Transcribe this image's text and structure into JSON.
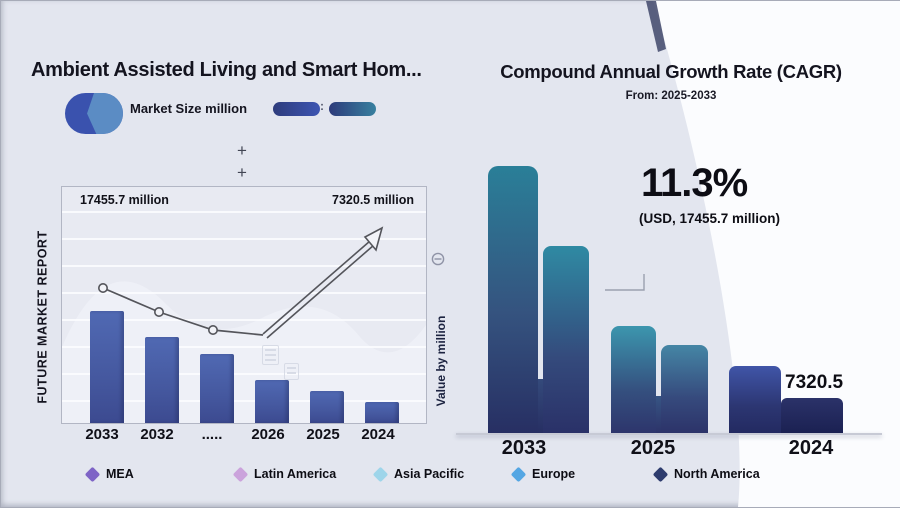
{
  "header": {
    "left_title": "Ambient Assisted Living and Smart Hom...",
    "logo_caption": "Market Size million",
    "ratio_separator": ":",
    "right_title": "Compound Annual Growth Rate (CAGR)",
    "right_subtitle": "From: 2025-2033"
  },
  "icons": {
    "plus": "+"
  },
  "left_panel": {
    "start_value_label": "17455.7 million",
    "end_value_label": "7320.5 million",
    "y_axis_label": "FUTURE MARKET REPORT"
  },
  "right_panel": {
    "cagr_value": "11.3%",
    "cagr_detail": "(USD, 17455.7 million)",
    "y_axis_label": "Value by million",
    "last_value_label": "7320.5"
  },
  "legend": {
    "items": [
      {
        "label": "MEA",
        "color": "#7e64c6"
      },
      {
        "label": "Latin America",
        "color": "#cba3dc"
      },
      {
        "label": "Asia Pacific",
        "color": "#9ed5ea"
      },
      {
        "label": "Europe",
        "color": "#54a6e3"
      },
      {
        "label": "North America",
        "color": "#2e3c6e"
      }
    ]
  },
  "chart_data": [
    {
      "type": "bar",
      "title": "Ambient Assisted Living and Smart Hom...",
      "ylabel": "FUTURE MARKET REPORT",
      "legend_label": "Market Size million",
      "categories": [
        "2033",
        "2032",
        ".....",
        "2026",
        "2025",
        "2024"
      ],
      "series": [
        {
          "name": "Market Size million",
          "type": "bar",
          "values_relative": [
            1.0,
            0.77,
            0.62,
            0.38,
            0.29,
            0.19
          ]
        },
        {
          "name": "trend-line",
          "type": "line",
          "y_relative_from_bottom": [
            0.57,
            0.47,
            0.39,
            0.37
          ]
        },
        {
          "name": "growth-arrow",
          "type": "arrow",
          "from_category_index": 3,
          "end_y_relative_from_bottom": 0.8
        }
      ],
      "labeled_values": {
        "2033": 17455.7,
        "2024": 7320.5
      },
      "value_unit": "million",
      "grid": true,
      "annotations": [
        "17455.7 million",
        "7320.5 million"
      ]
    },
    {
      "type": "bar",
      "title": "Compound Annual Growth Rate (CAGR)",
      "subtitle": "From: 2025-2033",
      "cagr_percent": 11.3,
      "cagr_detail": "(USD, 17455.7 million)",
      "ylabel": "Value by million",
      "categories": [
        "2033",
        "2025",
        "2024"
      ],
      "series": [
        {
          "name": "primary",
          "values_relative": [
            1.0,
            0.4,
            0.25
          ]
        },
        {
          "name": "secondary",
          "values_relative": [
            0.7,
            0.33,
            0.13
          ]
        }
      ],
      "labeled_values": {
        "2024": 7320.5
      },
      "value_unit": "million",
      "grid": false
    }
  ]
}
